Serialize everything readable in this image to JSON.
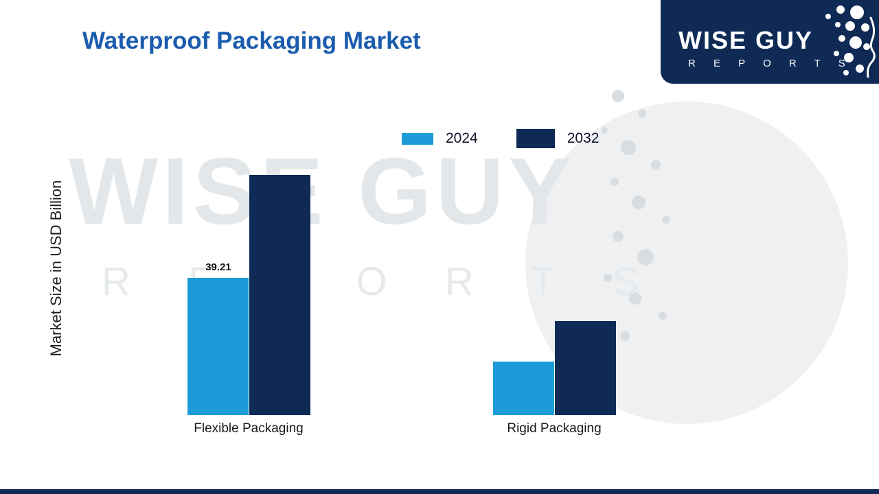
{
  "title": "Waterproof Packaging Market",
  "logo": {
    "line1": "WISE GUY",
    "line2": "R E P O R T S"
  },
  "watermark": {
    "line1": "WISE GUY",
    "line2": "R E P O R T S"
  },
  "colors": {
    "title": "#1a5cae",
    "series_2024": "#1b9cd8",
    "series_2032": "#0e2a55",
    "footer_bar": "#0e2a55",
    "watermark": "#e4e7ea"
  },
  "chart_data": {
    "type": "bar",
    "title": "Waterproof Packaging Market",
    "categories": [
      "Flexible Packaging",
      "Rigid Packaging"
    ],
    "series": [
      {
        "name": "2024",
        "color": "#1b9cd8",
        "values": [
          39.21,
          15.3
        ]
      },
      {
        "name": "2032",
        "color": "#0e2a55",
        "values": [
          68.6,
          26.9
        ]
      }
    ],
    "ylabel": "Market Size in USD Billion",
    "xlabel": "",
    "ylim": [
      0,
      80
    ],
    "grid": false,
    "legend_position": "top",
    "shown_value_label": {
      "series": "2024",
      "category": "Flexible Packaging",
      "text": "39.21"
    }
  }
}
